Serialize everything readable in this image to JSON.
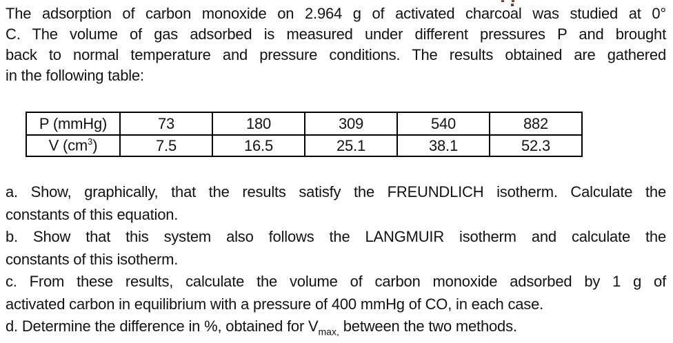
{
  "page": {
    "background_color": "#ffffff",
    "text_color": "#121212",
    "table_border_color": "#000000"
  },
  "artifacts": {
    "top_edge": "cropped-text-remnant-marks"
  },
  "intro": {
    "lines": [
      "The adsorption of carbon monoxide on 2.964 g of activated charcoal was studied at 0°",
      "C. The volume of gas adsorbed is measured under different pressures P and brought",
      "back to normal temperature and pressure conditions. The results obtained are gathered",
      "in the following table:"
    ]
  },
  "table": {
    "p_row": {
      "label": "P (mmHg)",
      "values": [
        "73",
        "180",
        "309",
        "540",
        "882"
      ]
    },
    "v_row": {
      "label_pre": "V (cm",
      "label_sup": "3",
      "label_post": ")",
      "values": [
        "7.5",
        "16.5",
        "25.1",
        "38.1",
        "52.3"
      ]
    }
  },
  "tasks": {
    "a_line1": "a. Show, graphically, that the results satisfy the FREUNDLICH isotherm. Calculate the",
    "a_line2": "constants of this equation.",
    "b_line1": "b. Show that this system also follows the LANGMUIR isotherm and calculate the",
    "b_line2": "constants of this isotherm.",
    "c_line1": "c. From these results, calculate the volume of carbon monoxide adsorbed by 1 g of",
    "c_line2": "activated carbon in equilibrium with a pressure of 400 mmHg of CO, in each case.",
    "d_pre": "d. Determine the difference in %, obtained for V",
    "d_sub": "max,",
    "d_post": " between the two methods."
  }
}
